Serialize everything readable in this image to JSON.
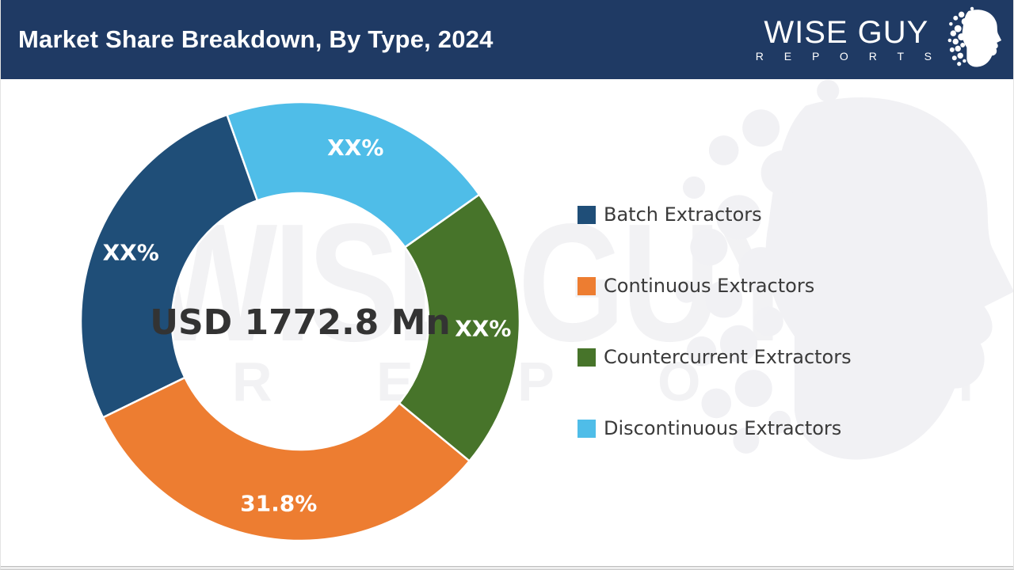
{
  "header": {
    "title": "Market Share Breakdown, By Type, 2024",
    "bg_color": "#1f3a64",
    "brand": {
      "name": "WISE GUY",
      "tagline": "R E P O R T S"
    }
  },
  "watermark": {
    "line1": "WISE GUY",
    "line2": "R E P O R T S"
  },
  "chart_data": {
    "type": "pie",
    "subtype": "donut",
    "title": "Market Share Breakdown, By Type, 2024",
    "center_label": "USD 1772.8 Mn",
    "start_angle_deg": 109.5,
    "direction": "counterclockwise",
    "categories": [
      "Batch Extractors",
      "Continuous Extractors",
      "Countercurrent Extractors",
      "Discontinuous Extractors"
    ],
    "values": [
      26.8,
      31.8,
      20.8,
      20.6
    ],
    "slice_labels": [
      "XX%",
      "31.8%",
      "XX%",
      "XX%"
    ],
    "colors": [
      "#1f4e78",
      "#ed7d31",
      "#47742a",
      "#4fbde8"
    ],
    "slice_label_color": "#ffffff",
    "center_label_color": "#333333",
    "legend_position": "right"
  }
}
